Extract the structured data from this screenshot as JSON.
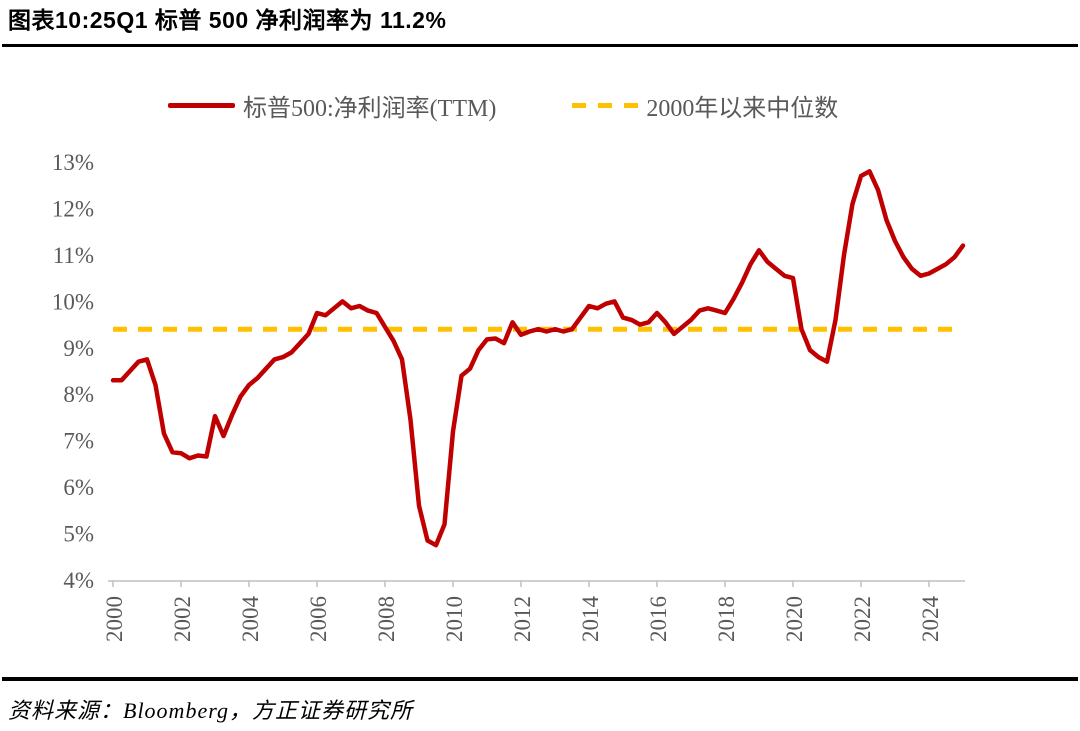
{
  "header": {
    "title": "图表10:25Q1 标普 500 净利润率为 11.2%"
  },
  "footer": {
    "source": "资料来源：Bloomberg，方正证券研究所"
  },
  "chart_data": {
    "type": "line",
    "title": "25Q1 标普 500 净利润率为 11.2%",
    "xlabel": "",
    "ylabel": "",
    "ylim": [
      4,
      13
    ],
    "xlim": [
      2000,
      2025.3
    ],
    "grid": false,
    "legend_position": "top",
    "y_ticks": [
      "13%",
      "12%",
      "11%",
      "10%",
      "9%",
      "8%",
      "7%",
      "6%",
      "5%",
      "4%"
    ],
    "x_ticks": [
      2000,
      2002,
      2004,
      2006,
      2008,
      2010,
      2012,
      2014,
      2016,
      2018,
      2020,
      2022,
      2024
    ],
    "legend": [
      {
        "label": "标普500:净利润率(TTM)",
        "style": "solid",
        "color": "#C00000"
      },
      {
        "label": "2000年以来中位数",
        "style": "dashed",
        "color": "#FFC000"
      }
    ],
    "median_since_2000": 9.4,
    "latest_point_label": "25Q1",
    "latest_point_value": 11.2,
    "colors": {
      "line": "#C00000",
      "median": "#FFC000",
      "axis": "#BFBFBF",
      "tick_label": "#595959"
    },
    "series": [
      {
        "name": "标普500:净利润率(TTM)",
        "unit": "%",
        "x": [
          2000,
          2000.25,
          2000.5,
          2000.75,
          2001,
          2001.25,
          2001.5,
          2001.75,
          2002,
          2002.25,
          2002.5,
          2002.75,
          2003,
          2003.25,
          2003.5,
          2003.75,
          2004,
          2004.25,
          2004.5,
          2004.75,
          2005,
          2005.25,
          2005.5,
          2005.75,
          2006,
          2006.25,
          2006.5,
          2006.75,
          2007,
          2007.25,
          2007.5,
          2007.75,
          2008,
          2008.25,
          2008.5,
          2008.75,
          2009,
          2009.25,
          2009.5,
          2009.75,
          2010,
          2010.25,
          2010.5,
          2010.75,
          2011,
          2011.25,
          2011.5,
          2011.75,
          2012,
          2012.25,
          2012.5,
          2012.75,
          2013,
          2013.25,
          2013.5,
          2013.75,
          2014,
          2014.25,
          2014.5,
          2014.75,
          2015,
          2015.25,
          2015.5,
          2015.75,
          2016,
          2016.25,
          2016.5,
          2016.75,
          2017,
          2017.25,
          2017.5,
          2017.75,
          2018,
          2018.25,
          2018.5,
          2018.75,
          2019,
          2019.25,
          2019.5,
          2019.75,
          2020,
          2020.25,
          2020.5,
          2020.75,
          2021,
          2021.25,
          2021.5,
          2021.75,
          2022,
          2022.25,
          2022.5,
          2022.75,
          2023,
          2023.25,
          2023.5,
          2023.75,
          2024,
          2024.25,
          2024.5,
          2024.75,
          2025
        ],
        "values": [
          8.3,
          8.3,
          8.5,
          8.7,
          8.75,
          8.2,
          7.15,
          6.75,
          6.73,
          6.62,
          6.68,
          6.66,
          7.53,
          7.1,
          7.55,
          7.95,
          8.2,
          8.35,
          8.55,
          8.75,
          8.8,
          8.9,
          9.1,
          9.3,
          9.75,
          9.7,
          9.85,
          10.0,
          9.85,
          9.9,
          9.8,
          9.75,
          9.45,
          9.15,
          8.75,
          7.45,
          5.6,
          4.85,
          4.75,
          5.2,
          7.2,
          8.4,
          8.55,
          8.95,
          9.18,
          9.2,
          9.1,
          9.55,
          9.28,
          9.35,
          9.4,
          9.35,
          9.4,
          9.35,
          9.4,
          9.65,
          9.9,
          9.85,
          9.95,
          10.0,
          9.65,
          9.6,
          9.5,
          9.55,
          9.75,
          9.55,
          9.3,
          9.45,
          9.6,
          9.8,
          9.85,
          9.8,
          9.75,
          10.05,
          10.4,
          10.8,
          11.1,
          10.85,
          10.7,
          10.55,
          10.5,
          9.4,
          8.95,
          8.8,
          8.7,
          9.6,
          11.0,
          12.1,
          12.7,
          12.8,
          12.4,
          11.75,
          11.3,
          10.95,
          10.7,
          10.55,
          10.6,
          10.7,
          10.8,
          10.95,
          11.2
        ]
      }
    ]
  }
}
